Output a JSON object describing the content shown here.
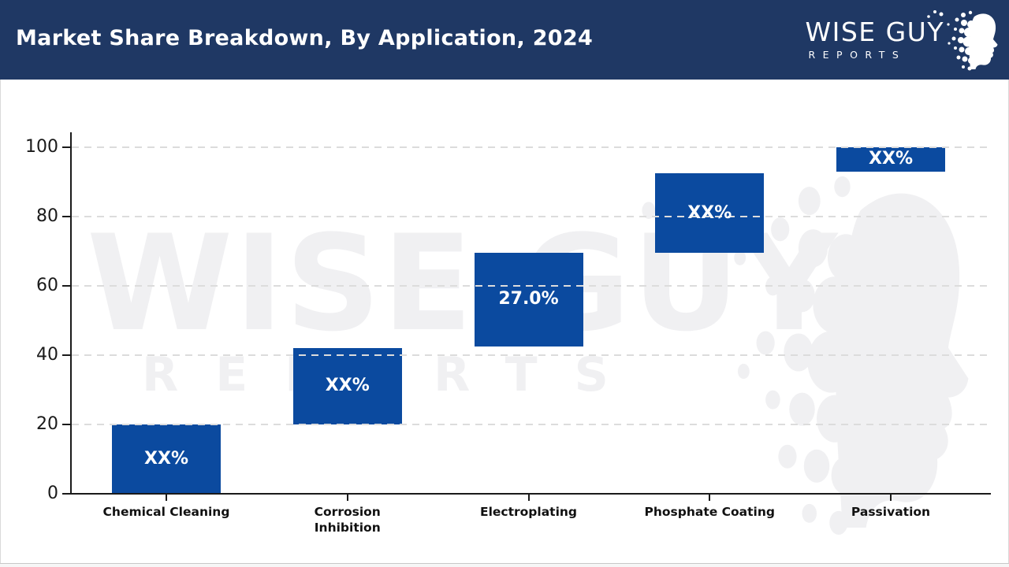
{
  "header": {
    "title": "Market Share Breakdown, By Application, 2024",
    "bg_color": "#1f3864",
    "logo": {
      "wordmark": "WISE GUY",
      "subtext": "REPORTS"
    }
  },
  "watermark": {
    "line1": "WISE GUY",
    "line2": "REPORTS"
  },
  "chart_data": {
    "type": "bar",
    "subtype": "waterfall",
    "title": "Market Share Breakdown, By Application, 2024",
    "categories": [
      "Chemical Cleaning",
      "Corrosion\nInhibition",
      "Electroplating",
      "Phosphate Coating",
      "Passivation"
    ],
    "segments": [
      {
        "category": "Chemical Cleaning",
        "start": 0,
        "end": 20,
        "label": "XX%"
      },
      {
        "category": "Corrosion\nInhibition",
        "start": 20,
        "end": 42,
        "label": "XX%"
      },
      {
        "category": "Electroplating",
        "start": 42.5,
        "end": 69.5,
        "label": "27.0%"
      },
      {
        "category": "Phosphate Coating",
        "start": 69.5,
        "end": 92.5,
        "label": "XX%"
      },
      {
        "category": "Passivation",
        "start": 93,
        "end": 100,
        "label": "XX%"
      }
    ],
    "yticks": [
      0,
      20,
      40,
      60,
      80,
      100
    ],
    "ylim": [
      0,
      105
    ],
    "xlabel": "",
    "ylabel": "",
    "legend_position": "none",
    "grid": "horizontal-dashed",
    "bar_color": "#0b4a9f",
    "bar_label_color": "#ffffff",
    "axis_color": "#1a1a1a",
    "gridline_color": "#dcdcdc"
  }
}
